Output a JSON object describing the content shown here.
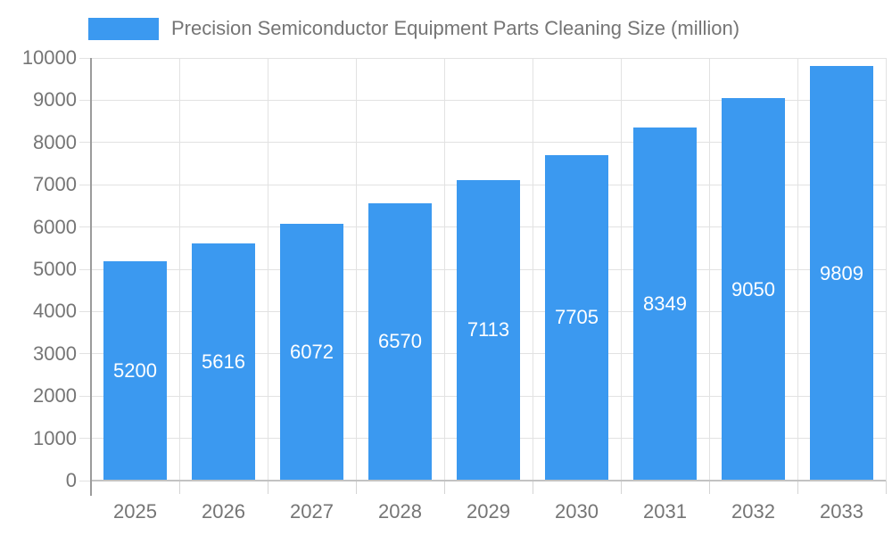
{
  "chart_data": {
    "type": "bar",
    "title": "Precision Semiconductor Equipment Parts Cleaning Size (million)",
    "categories": [
      "2025",
      "2026",
      "2027",
      "2028",
      "2029",
      "2030",
      "2031",
      "2032",
      "2033"
    ],
    "values": [
      5200,
      5616,
      6072,
      6570,
      7113,
      7705,
      8349,
      9050,
      9809
    ],
    "xlabel": "",
    "ylabel": "",
    "ylim": [
      0,
      10000
    ],
    "ytick_step": 1000,
    "grid": true,
    "legend_position": "top",
    "bar_color": "#3b99f0",
    "value_label_color": "#ffffff",
    "axis_text_color": "#757575",
    "grid_color": "#e2e2e2",
    "y_axis_line_color": "#9b9b9b",
    "x_axis_line_color": "#c2c2c2",
    "x_tick_color": "#d4d4d4",
    "background_color": "#ffffff"
  }
}
